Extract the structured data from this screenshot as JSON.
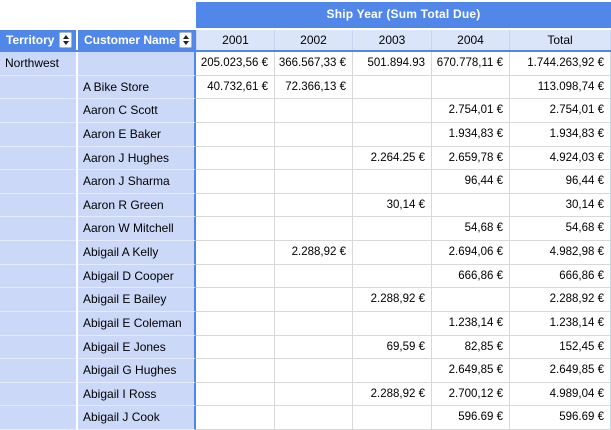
{
  "table": {
    "band_title": "Ship Year (Sum Total Due)",
    "row_headers": {
      "territory": "Territory",
      "customer": "Customer Name"
    },
    "year_columns": [
      "2001",
      "2002",
      "2003",
      "2004",
      "Total"
    ],
    "rows": [
      {
        "territory": "Northwest",
        "customer": "",
        "values": [
          "205.023,56 €",
          "366.567,33 €",
          "501.894.93",
          "670.778,11 €",
          "1.744.263,92 €"
        ]
      },
      {
        "territory": "",
        "customer": "A Bike Store",
        "values": [
          "40.732,61 €",
          "72.366,13 €",
          "",
          "",
          "113.098,74 €"
        ]
      },
      {
        "territory": "",
        "customer": "Aaron C Scott",
        "values": [
          "",
          "",
          "",
          "2.754,01 €",
          "2.754,01 €"
        ]
      },
      {
        "territory": "",
        "customer": "Aaron E Baker",
        "values": [
          "",
          "",
          "",
          "1.934,83 €",
          "1.934,83 €"
        ]
      },
      {
        "territory": "",
        "customer": "Aaron J Hughes",
        "values": [
          "",
          "",
          "2.264.25 €",
          "2.659,78 €",
          "4.924,03 €"
        ]
      },
      {
        "territory": "",
        "customer": "Aaron J Sharma",
        "values": [
          "",
          "",
          "",
          "96,44 €",
          "96,44 €"
        ]
      },
      {
        "territory": "",
        "customer": "Aaron R Green",
        "values": [
          "",
          "",
          "30,14 €",
          "",
          "30,14 €"
        ]
      },
      {
        "territory": "",
        "customer": "Aaron W Mitchell",
        "values": [
          "",
          "",
          "",
          "54,68 €",
          "54,68 €"
        ]
      },
      {
        "territory": "",
        "customer": "Abigail A Kelly",
        "values": [
          "",
          "2.288,92 €",
          "",
          "2.694,06 €",
          "4.982,98 €"
        ]
      },
      {
        "territory": "",
        "customer": "Abigail D Cooper",
        "values": [
          "",
          "",
          "",
          "666,86 €",
          "666,86 €"
        ]
      },
      {
        "territory": "",
        "customer": "Abigail E Bailey",
        "values": [
          "",
          "",
          "2.288,92 €",
          "",
          "2.288,92 €"
        ]
      },
      {
        "territory": "",
        "customer": "Abigail E Coleman",
        "values": [
          "",
          "",
          "",
          "1.238,14 €",
          "1.238,14 €"
        ]
      },
      {
        "territory": "",
        "customer": "Abigail E Jones",
        "values": [
          "",
          "",
          "69,59 €",
          "82,85 €",
          "152,45 €"
        ]
      },
      {
        "territory": "",
        "customer": "Abigail G Hughes",
        "values": [
          "",
          "",
          "",
          "2.649,85 €",
          "2.649,85 €"
        ]
      },
      {
        "territory": "",
        "customer": "Abigail I Ross",
        "values": [
          "",
          "",
          "2.288,92 €",
          "2.700,12 €",
          "4.989,04 €"
        ]
      },
      {
        "territory": "",
        "customer": "Abigail J Cook",
        "values": [
          "",
          "",
          "",
          "596.69 €",
          "596.69 €"
        ]
      }
    ]
  },
  "colors": {
    "header_blue": "#5187e8",
    "year_header_bg": "#dbe5fa",
    "label_cell_bg": "#cbd8f7",
    "grid_line": "#d8d8d8",
    "header_text": "#ffffff"
  }
}
